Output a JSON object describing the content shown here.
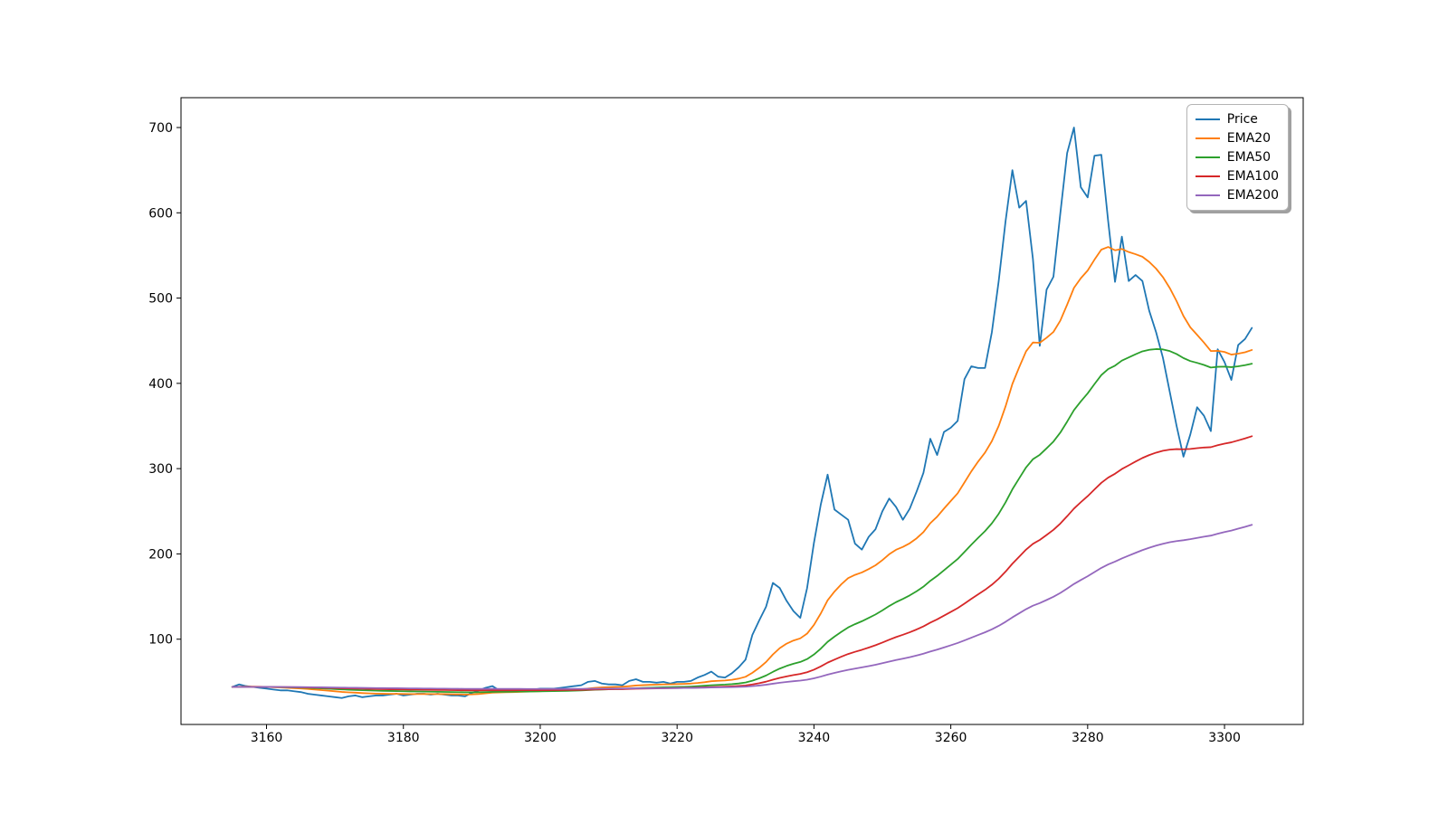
{
  "chart_data": {
    "type": "line",
    "title": "",
    "xlabel": "",
    "ylabel": "",
    "grid": false,
    "background": "#ffffff",
    "x0": 3155,
    "x_step": 1,
    "xlim": [
      3147.5,
      3311.5
    ],
    "ylim": [
      0,
      735
    ],
    "xticks": [
      3160,
      3180,
      3200,
      3220,
      3240,
      3260,
      3280,
      3300
    ],
    "yticks": [
      100,
      200,
      300,
      400,
      500,
      600,
      700
    ],
    "legend": {
      "location": "upper right"
    },
    "series": [
      {
        "name": "Price",
        "color": "#1f77b4",
        "values": [
          44,
          47,
          45,
          44,
          43,
          42,
          41,
          40,
          40,
          39,
          38,
          36,
          35,
          34,
          33,
          32,
          31,
          33,
          34,
          32,
          33,
          34,
          34,
          35,
          36,
          34,
          35,
          36,
          36,
          35,
          36,
          35,
          34,
          34,
          33,
          37,
          40,
          43,
          45,
          40,
          40,
          40,
          41,
          41,
          41,
          42,
          42,
          42,
          43,
          44,
          45,
          46,
          50,
          51,
          48,
          47,
          47,
          46,
          51,
          53,
          50,
          50,
          49,
          50,
          48,
          50,
          50,
          51,
          55,
          58,
          62,
          56,
          55,
          60,
          67,
          76,
          105,
          122,
          138,
          166,
          160,
          145,
          133,
          125,
          160,
          213,
          258,
          293,
          252,
          246,
          240,
          212,
          205,
          220,
          229,
          250,
          265,
          255,
          240,
          253,
          273,
          295,
          335,
          316,
          343,
          348,
          356,
          405,
          420,
          418,
          418,
          460,
          520,
          590,
          650,
          606,
          614,
          546,
          444,
          510,
          525,
          599,
          670,
          700,
          630,
          618,
          667,
          668,
          590,
          519,
          572,
          520,
          527,
          520,
          485,
          460,
          430,
          390,
          350,
          314,
          340,
          372,
          362,
          344,
          440,
          425,
          404,
          445,
          452,
          465
        ]
      },
      {
        "name": "EMA20",
        "color": "#ff7f0e",
        "derived": "ema",
        "span": 20
      },
      {
        "name": "EMA50",
        "color": "#2ca02c",
        "derived": "ema",
        "span": 50
      },
      {
        "name": "EMA100",
        "color": "#d62728",
        "derived": "ema",
        "span": 100
      },
      {
        "name": "EMA200",
        "color": "#9467bd",
        "derived": "ema",
        "span": 200
      }
    ]
  }
}
